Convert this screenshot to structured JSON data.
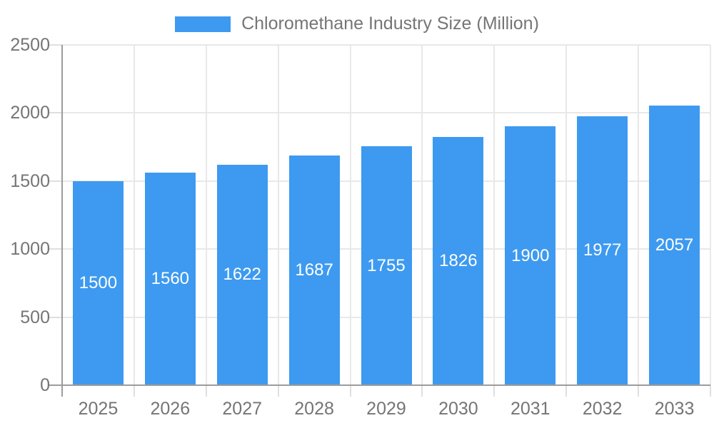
{
  "legend": {
    "label": "Chloromethane Industry Size (Million)"
  },
  "colors": {
    "bar": "#3D9AF0",
    "text": "#757575",
    "value_label": "#FFFFFF",
    "axis": "#9C9C9C",
    "grid": "#E8E8E8",
    "tick": "#DFDFDF",
    "background": "#FFFFFF"
  },
  "chart_data": {
    "type": "bar",
    "title": "Chloromethane Industry Size (Million)",
    "categories": [
      "2025",
      "2026",
      "2027",
      "2028",
      "2029",
      "2030",
      "2031",
      "2032",
      "2033"
    ],
    "values": [
      1500,
      1560,
      1622,
      1687,
      1755,
      1826,
      1900,
      1977,
      2057
    ],
    "xlabel": "",
    "ylabel": "",
    "ylim": [
      0,
      2500
    ],
    "yticks": [
      0,
      500,
      1000,
      1500,
      2000,
      2500
    ],
    "grid": true,
    "legend_position": "top",
    "value_labels": "centered-in-bar"
  }
}
